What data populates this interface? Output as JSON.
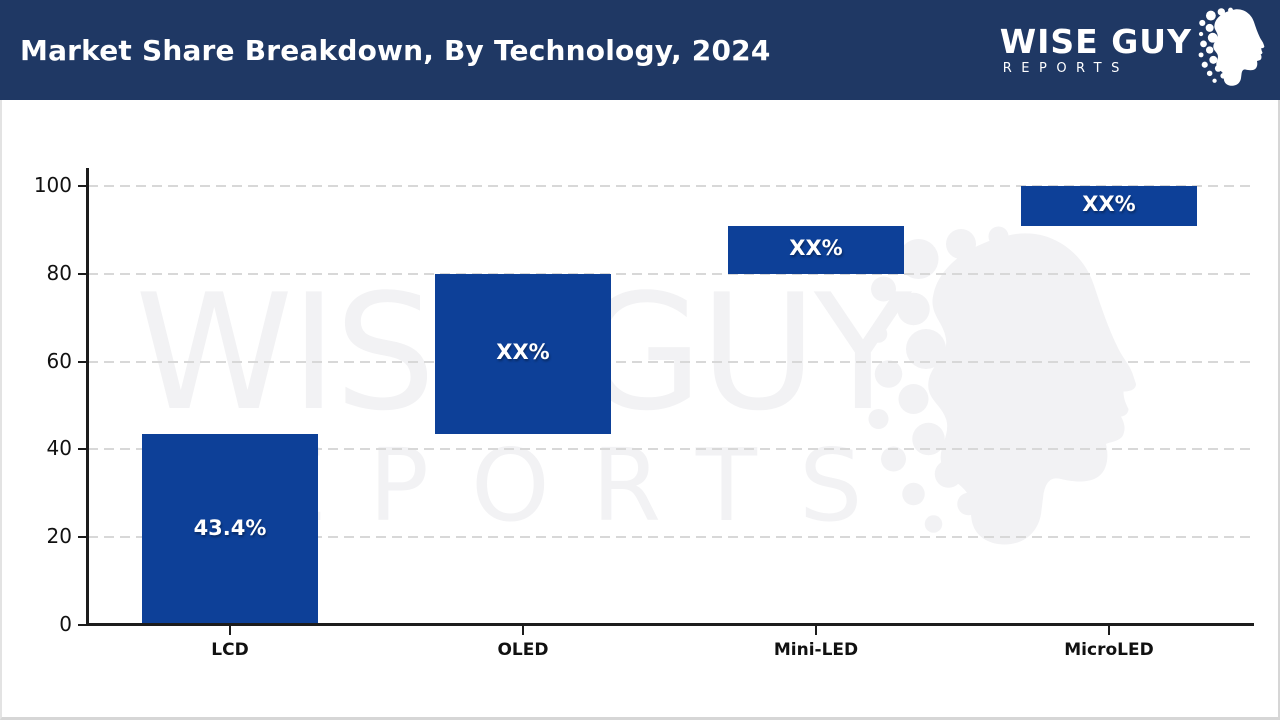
{
  "header": {
    "title": "Market Share Breakdown, By Technology, 2024",
    "logo": {
      "line1": "WISE GUY",
      "line2": "REPORTS"
    }
  },
  "watermark": {
    "line1": "WISE GUY",
    "line2": "REPORTS"
  },
  "colors": {
    "header_bg": "#1f3864",
    "title_text": "#ffffff",
    "bar": "#0d4098",
    "bar_label": "#ffffff",
    "axis": "#1c1c1c",
    "grid": "#d8d8d8",
    "watermark": "#f2f2f4"
  },
  "chart_data": {
    "type": "bar",
    "subtype": "waterfall",
    "title": "Market Share Breakdown, By Technology, 2024",
    "categories": [
      "LCD",
      "OLED",
      "Mini-LED",
      "MicroLED"
    ],
    "series": [
      {
        "name": "LCD",
        "start": 0,
        "end": 43.4,
        "label": "43.4%"
      },
      {
        "name": "OLED",
        "start": 43.4,
        "end": 80,
        "label": "XX%"
      },
      {
        "name": "Mini-LED",
        "start": 80,
        "end": 91,
        "label": "XX%"
      },
      {
        "name": "MicroLED",
        "start": 91,
        "end": 100,
        "label": "XX%"
      }
    ],
    "xlabel": "",
    "ylabel": "",
    "ylim": [
      0,
      100
    ],
    "yticks": [
      0,
      20,
      40,
      60,
      80,
      100
    ],
    "grid": "dashed-horizontal",
    "legend": "none",
    "bar_color": "#0d4098",
    "value_label_color": "#ffffff"
  }
}
